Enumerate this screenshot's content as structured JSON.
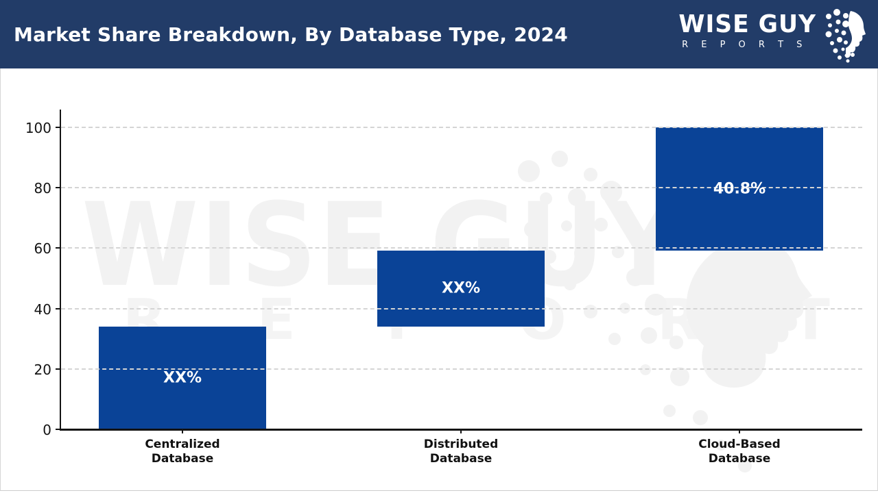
{
  "header": {
    "title": "Market Share Breakdown, By Database Type, 2024",
    "logo": {
      "name": "WISE GUY",
      "subtitle": "R E P O R T S"
    }
  },
  "watermark": {
    "line1": "WISE GUY",
    "line2": "R E P O R T S"
  },
  "colors": {
    "header_bg": "#223c68",
    "bar": "#0a4397",
    "bar_label": "#ffffff",
    "grid": "#d4d4d4",
    "axis": "#141414",
    "watermark": "#f2f2f2"
  },
  "chart_data": {
    "type": "bar",
    "subtype": "waterfall",
    "title": "Market Share Breakdown, By Database Type, 2024",
    "categories": [
      [
        "Centralized",
        "Database"
      ],
      [
        "Distributed",
        "Database"
      ],
      [
        "Cloud-Based",
        "Database"
      ]
    ],
    "bars": [
      {
        "label": "XX%",
        "start": 0,
        "end": 34
      },
      {
        "label": "XX%",
        "start": 34,
        "end": 59.2
      },
      {
        "label": "40.8%",
        "start": 59.2,
        "end": 100
      }
    ],
    "ylim": [
      0,
      100
    ],
    "yticks": [
      0,
      20,
      40,
      60,
      80,
      100
    ],
    "xlabel": "",
    "ylabel": "",
    "grid": "dashed-horizontal",
    "legend": "none"
  }
}
